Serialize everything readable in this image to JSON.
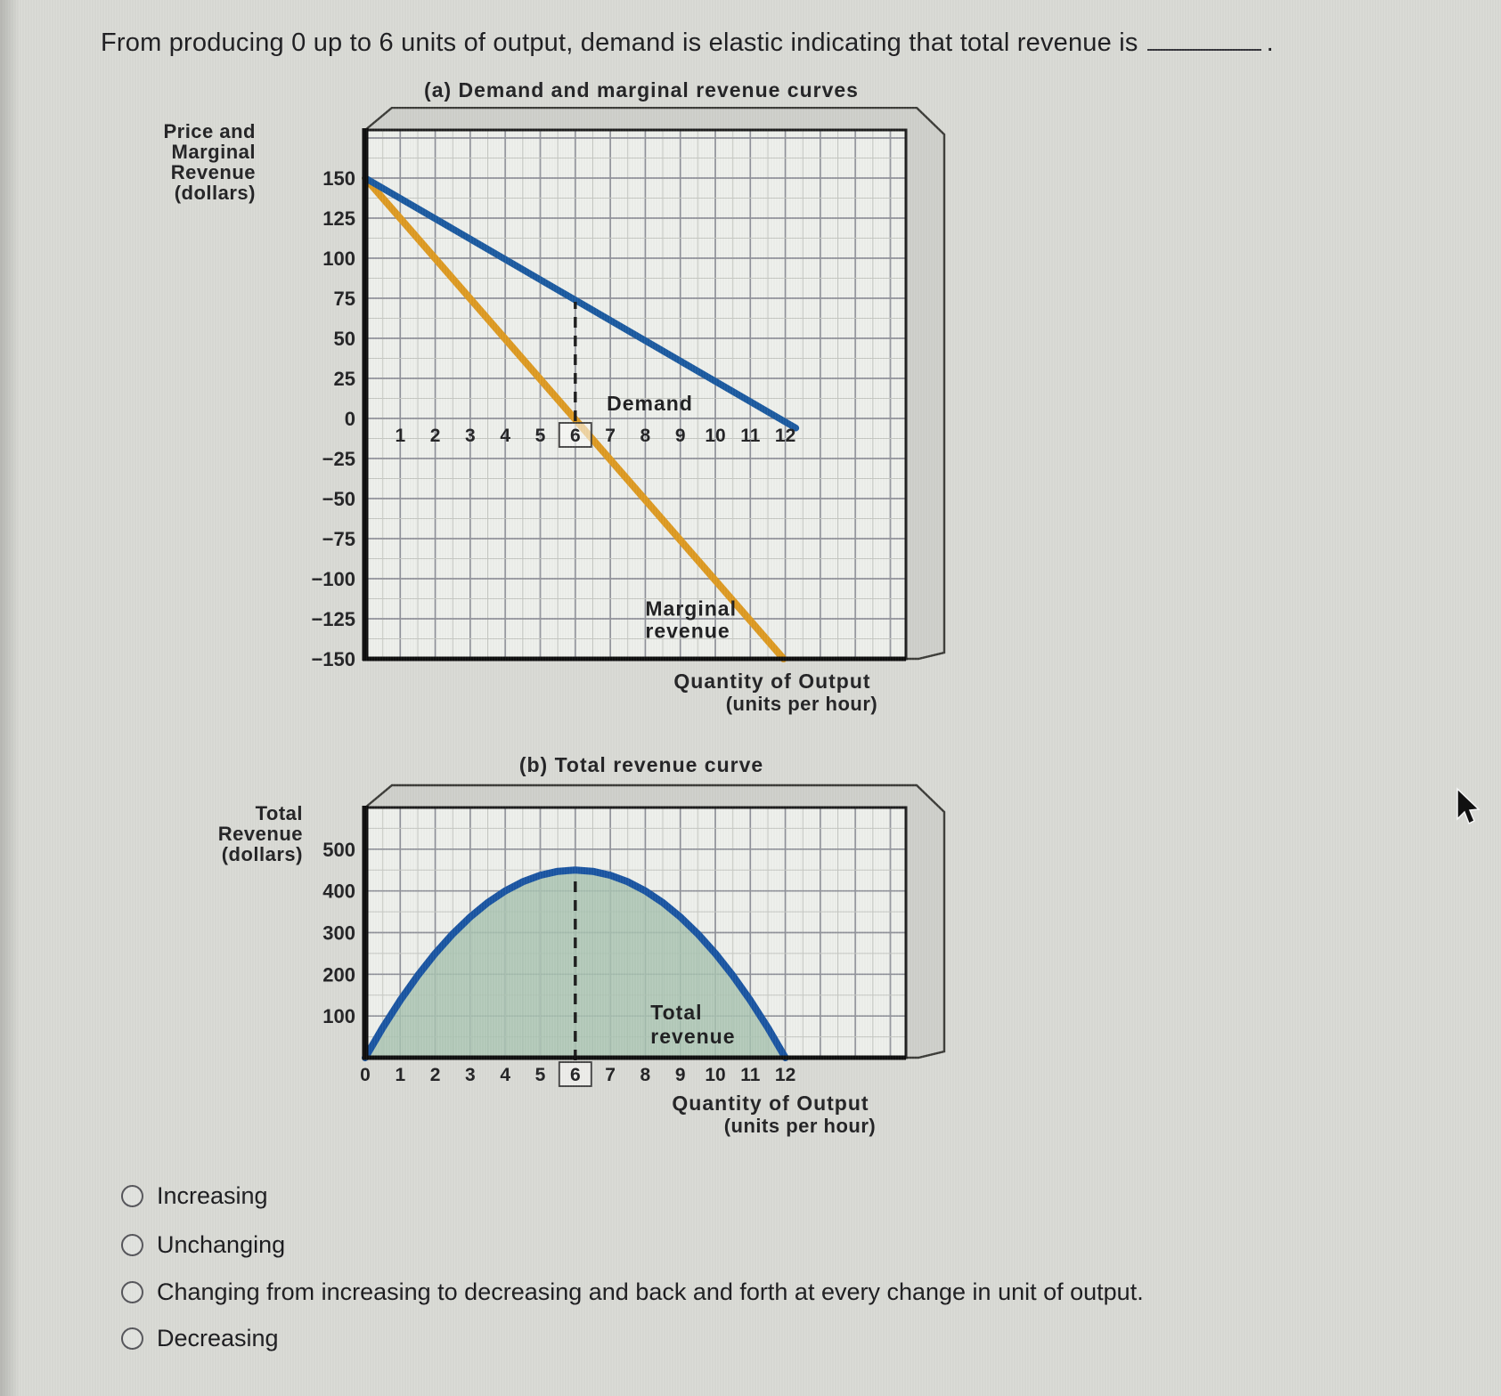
{
  "question": {
    "text": "From producing 0 up to 6 units of output, demand is elastic indicating that total revenue is",
    "blank": "________",
    "suffix": "."
  },
  "palette": {
    "page_bg": "#d9dad5",
    "plot_bg": "#eef0ec",
    "panel_gray": "#cfd0cb",
    "frame_dark": "#1c1c1c",
    "grid_major": "#90929a",
    "grid_minor": "#c5c7c2",
    "demand_blue": "#1b5aa0",
    "mr_orange": "#dd9a22",
    "tr_blue": "#1a55a2",
    "tr_fill_green": "#a9c3b2",
    "dash_black": "#1a1a1a",
    "text_dark": "#232325"
  },
  "chart_data": [
    {
      "id": "a",
      "type": "line",
      "title": "(a) Demand and marginal revenue curves",
      "ylabel_lines": [
        "Price and",
        "Marginal",
        "Revenue",
        "(dollars)"
      ],
      "xlabel_bold": "Quantity of Output",
      "xlabel_sub": "(units per hour)",
      "xlim": [
        0,
        15.4
      ],
      "ylim": [
        -150,
        180
      ],
      "x_ticks": [
        1,
        2,
        3,
        4,
        5,
        6,
        7,
        8,
        9,
        10,
        11,
        12
      ],
      "boxed_x_tick": 6,
      "y_ticks": [
        150,
        125,
        100,
        75,
        50,
        25,
        0,
        -25,
        -50,
        -75,
        -100,
        -125,
        -150
      ],
      "grid": {
        "x_minor": 0.5,
        "x_major": 1,
        "y_minor": 12.5,
        "y_major": 25
      },
      "series": [
        {
          "name": "Marginal revenue",
          "color_key": "mr_orange",
          "width": 8,
          "points": [
            [
              0,
              150
            ],
            [
              11.95,
              -150
            ]
          ]
        },
        {
          "name": "Demand",
          "color_key": "demand_blue",
          "width": 7.5,
          "points": [
            [
              0,
              150
            ],
            [
              12.3,
              -6
            ]
          ]
        }
      ],
      "dashed_line": {
        "x": 6,
        "from": 0,
        "to": 75
      },
      "annotations": [
        {
          "lines": [
            "Demand"
          ],
          "q": 6.9,
          "v": 5
        },
        {
          "lines": [
            "Marginal",
            "revenue"
          ],
          "q": 8.0,
          "v": -123
        }
      ]
    },
    {
      "id": "b",
      "type": "area",
      "title": "(b) Total revenue curve",
      "ylabel_lines": [
        "Total",
        "Revenue",
        "(dollars)"
      ],
      "xlabel_bold": "Quantity of Output",
      "xlabel_sub": "(units per hour)",
      "xlim": [
        0,
        15.4
      ],
      "ylim": [
        0,
        600
      ],
      "x_ticks": [
        0,
        1,
        2,
        3,
        4,
        5,
        6,
        7,
        8,
        9,
        10,
        11,
        12
      ],
      "boxed_x_tick": 6,
      "y_ticks": [
        500,
        400,
        300,
        200,
        100
      ],
      "grid": {
        "x_minor": 0.5,
        "x_major": 1,
        "y_minor": 50,
        "y_major": 100
      },
      "series": [
        {
          "name": "Total revenue",
          "color_key": "tr_blue",
          "fill_key": "tr_fill_green",
          "fill_opacity": 0.85,
          "width": 8,
          "points": [
            [
              0,
              0
            ],
            [
              0.5,
              71.9
            ],
            [
              1,
              137.5
            ],
            [
              1.5,
              196.9
            ],
            [
              2,
              250
            ],
            [
              2.5,
              296.9
            ],
            [
              3,
              337.5
            ],
            [
              3.5,
              371.9
            ],
            [
              4,
              400
            ],
            [
              4.5,
              421.9
            ],
            [
              5,
              437.5
            ],
            [
              5.5,
              446.9
            ],
            [
              6,
              450
            ],
            [
              6.5,
              446.9
            ],
            [
              7,
              437.5
            ],
            [
              7.5,
              421.9
            ],
            [
              8,
              400
            ],
            [
              8.5,
              371.9
            ],
            [
              9,
              337.5
            ],
            [
              9.5,
              296.9
            ],
            [
              10,
              250
            ],
            [
              10.5,
              196.9
            ],
            [
              11,
              137.5
            ],
            [
              11.5,
              71.9
            ],
            [
              12,
              0
            ]
          ]
        }
      ],
      "dashed_line": {
        "x": 6,
        "from": 0,
        "to": 450
      },
      "annotations": [
        {
          "lines": [
            "Total",
            "revenue"
          ],
          "q": 8.15,
          "v": 92
        }
      ]
    }
  ],
  "options": [
    {
      "label": "Increasing",
      "selected": false
    },
    {
      "label": "Unchanging",
      "selected": false
    },
    {
      "label": "Changing from increasing to decreasing and back and forth at every change in unit of output.",
      "selected": false
    },
    {
      "label": "Decreasing",
      "selected": false
    }
  ]
}
